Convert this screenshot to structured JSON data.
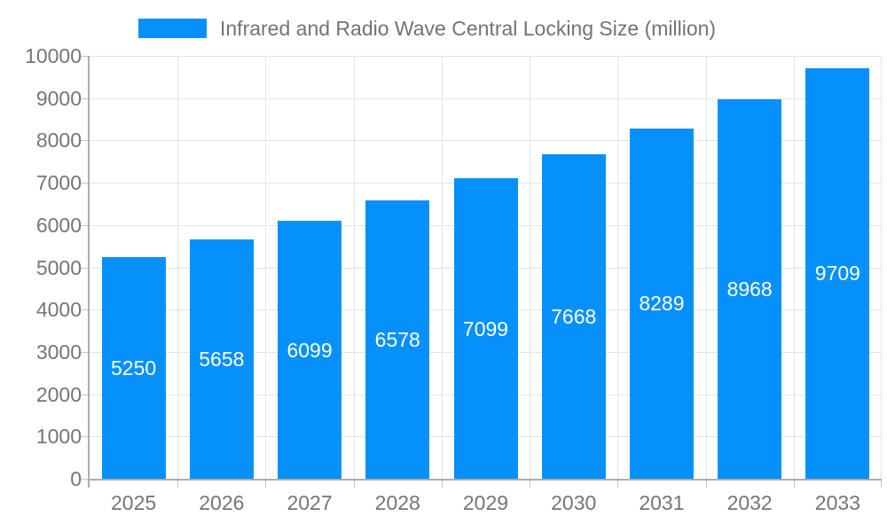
{
  "chart_data": {
    "type": "bar",
    "title": "",
    "xlabel": "",
    "ylabel": "",
    "categories": [
      "2025",
      "2026",
      "2027",
      "2028",
      "2029",
      "2030",
      "2031",
      "2032",
      "2033"
    ],
    "series": [
      {
        "name": "Infrared and Radio Wave Central Locking Size (million)",
        "values": [
          5250,
          5658,
          6099,
          6578,
          7099,
          7668,
          8289,
          8968,
          9709
        ]
      }
    ],
    "ylim": [
      0,
      10000
    ],
    "ytick_step": 1000,
    "yticks": [
      0,
      1000,
      2000,
      3000,
      4000,
      5000,
      6000,
      7000,
      8000,
      9000,
      10000
    ],
    "grid": true,
    "legend_position": "top",
    "bar_labels": "white, centered inside bars",
    "colors": {
      "bar": "#0691fa",
      "bar_label": "#ffffff",
      "grid_line": "#e3e3e3",
      "axis_line": "#adadad",
      "tick_mark": "#c6c6c6",
      "tick_label": "#757575",
      "legend_text": "#737373",
      "background": "#ffffff"
    }
  }
}
